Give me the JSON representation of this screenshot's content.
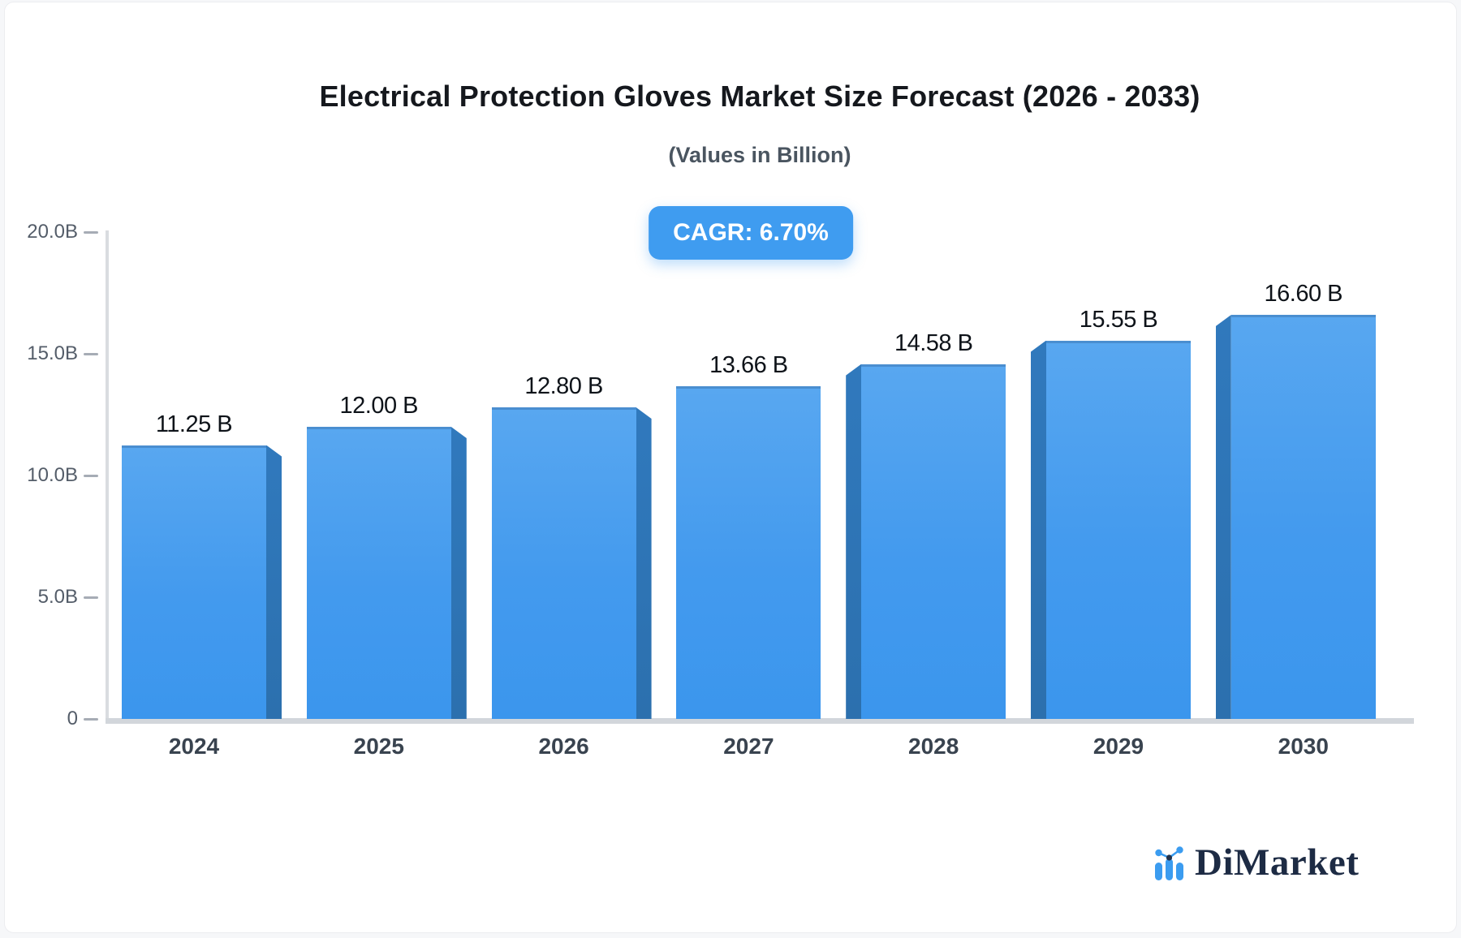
{
  "header": {
    "title": "Electrical Protection Gloves Market Size Forecast (2026 - 2033)",
    "subtitle": "(Values in Billion)"
  },
  "badge": {
    "label": "CAGR: 6.70%"
  },
  "brand": {
    "name": "DiMarket",
    "icon": "bar-chart-logo-icon"
  },
  "chart_data": {
    "type": "bar",
    "title": "Electrical Protection Gloves Market Size Forecast (2026 - 2033)",
    "subtitle": "(Values in Billion)",
    "categories": [
      "2024",
      "2025",
      "2026",
      "2027",
      "2028",
      "2029",
      "2030"
    ],
    "values": [
      11.25,
      12.0,
      12.8,
      13.66,
      14.58,
      15.55,
      16.6
    ],
    "value_labels": [
      "11.25 B",
      "12.00 B",
      "12.80 B",
      "13.66 B",
      "14.58 B",
      "15.55 B",
      "16.60 B"
    ],
    "xlabel": "",
    "ylabel": "",
    "ylim": [
      0,
      20
    ],
    "y_ticks": [
      {
        "value": 20,
        "label": "20.0B"
      },
      {
        "value": 15,
        "label": "15.0B"
      },
      {
        "value": 10,
        "label": "10.0B"
      },
      {
        "value": 5,
        "label": "5.0B"
      },
      {
        "value": 0,
        "label": "0"
      }
    ],
    "grid": false,
    "legend": false,
    "style_3d": "perspective toward center: bars left of center show right side face, right of center show left side face",
    "colors": {
      "bar_face_top": "#58a7f0",
      "bar_face_bottom": "#3b96ed",
      "bar_side": "#2e77b8",
      "badge_bg": "#3f9cf0",
      "axis": "#d2d6db",
      "brand_blue": "#3b9cf0",
      "brand_navy": "#1d2b44"
    }
  }
}
